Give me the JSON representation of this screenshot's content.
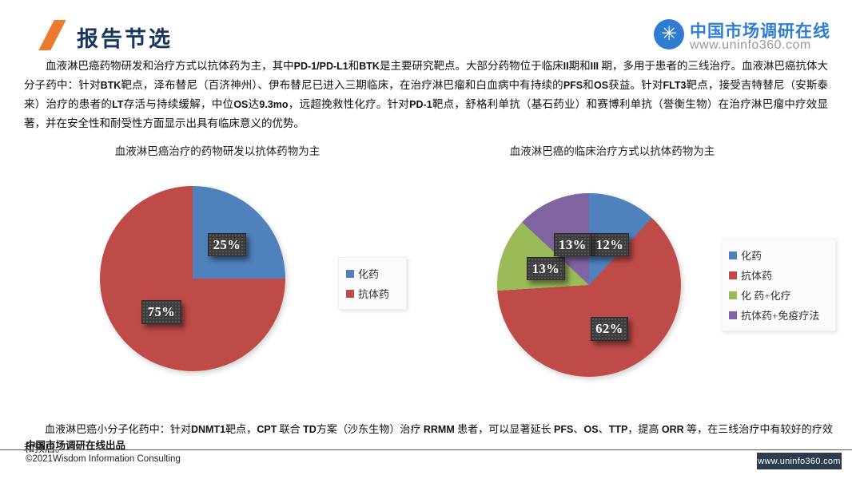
{
  "page": {
    "header": {
      "title": "报告节选",
      "brand_name": "中国市场调研在线",
      "brand_url": "www.uninfo360.com"
    },
    "colors": {
      "accent_orange": "#ED7B2F",
      "title_navy": "#17375E",
      "brand_blue": "#2F7CD3",
      "badge_bg": "#2D3B4E",
      "label_box": "#3C3C3C"
    },
    "intro_paragraph": {
      "segments": [
        {
          "t": "血液淋巴癌药物研发和治疗方式以抗体药为主，其中",
          "b": false
        },
        {
          "t": "PD-1/PD-L1",
          "b": true
        },
        {
          "t": "和",
          "b": false
        },
        {
          "t": "BTK",
          "b": true
        },
        {
          "t": "是主要研究靶点。大部分药物位于临床",
          "b": false
        },
        {
          "t": "II",
          "b": true
        },
        {
          "t": "期和",
          "b": false
        },
        {
          "t": "III",
          "b": true
        },
        {
          "t": " 期，多用于患者的三线治疗。血液淋巴癌抗体大分子药中：针对",
          "b": false
        },
        {
          "t": "BTK",
          "b": true
        },
        {
          "t": "靶点，泽布替尼（百济神州）、伊布替尼已进入三期临床，在治疗淋巴瘤和白血病中有持续的",
          "b": false
        },
        {
          "t": "PFS",
          "b": true
        },
        {
          "t": "和",
          "b": false
        },
        {
          "t": "OS",
          "b": true
        },
        {
          "t": "获益。针对",
          "b": false
        },
        {
          "t": "FLT3",
          "b": true
        },
        {
          "t": "靶点，接受吉特替尼（安斯泰来）治疗的患者的",
          "b": false
        },
        {
          "t": "LT",
          "b": true
        },
        {
          "t": "存活与持续缓解，中位",
          "b": false
        },
        {
          "t": "OS",
          "b": true
        },
        {
          "t": "达",
          "b": false
        },
        {
          "t": "9.3mo",
          "b": true
        },
        {
          "t": "，远超挽救性化疗。针对",
          "b": false
        },
        {
          "t": "PD-1",
          "b": true
        },
        {
          "t": "靶点，舒格利单抗（基石药业）和赛博利单抗（誉衡生物）在治疗淋巴瘤中疗效显著，并在安全性和耐受性方面显示出具有临床意义的优势。",
          "b": false
        }
      ]
    },
    "bottom_paragraph": {
      "segments": [
        {
          "t": "血液淋巴癌小分子化药中：针对",
          "b": false
        },
        {
          "t": "DNMT1",
          "b": true
        },
        {
          "t": "靶点，",
          "b": false
        },
        {
          "t": "CPT",
          "b": true
        },
        {
          "t": " 联合 ",
          "b": false
        },
        {
          "t": "TD",
          "b": true
        },
        {
          "t": "方案（沙东生物）治疗 ",
          "b": false
        },
        {
          "t": "RRMM",
          "b": true
        },
        {
          "t": " 患者，可以显著延长 ",
          "b": false
        },
        {
          "t": "PFS",
          "b": true
        },
        {
          "t": "、",
          "b": false
        },
        {
          "t": "OS",
          "b": true
        },
        {
          "t": "、",
          "b": false
        },
        {
          "t": "TTP",
          "b": true
        },
        {
          "t": "，提高 ",
          "b": false
        },
        {
          "t": "ORR",
          "b": true
        },
        {
          "t": " 等，在三线治疗中有较好的疗效和预后。",
          "b": false
        }
      ]
    },
    "footer": {
      "publisher": "中国市场调研在线出品",
      "copyright": "©2021Wisdom Information Consulting",
      "badge_url": "www.uninfo360.com"
    }
  },
  "chart_data": [
    {
      "type": "pie",
      "title": "血液淋巴癌治疗的药物研发以抗体药物为主",
      "categories": [
        "化药",
        "抗体药"
      ],
      "values": [
        25,
        75
      ],
      "colors": [
        "#4F81BD",
        "#BE4B48"
      ],
      "data_labels": [
        "25%",
        "75%"
      ],
      "start_angle_deg": 0,
      "legend_position": "right",
      "grid": false
    },
    {
      "type": "pie",
      "title": "血液淋巴癌的临床治疗方式以抗体药物为主",
      "categories": [
        "化药",
        "抗体药",
        "化 药+化疗",
        "抗体药+免疫疗法"
      ],
      "values": [
        12,
        62,
        13,
        13
      ],
      "colors": [
        "#4F81BD",
        "#BE4B48",
        "#9BBB59",
        "#8064A2"
      ],
      "data_labels": [
        "12%",
        "62%",
        "13%",
        "13%"
      ],
      "start_angle_deg": 0,
      "legend_position": "right",
      "grid": false
    }
  ]
}
